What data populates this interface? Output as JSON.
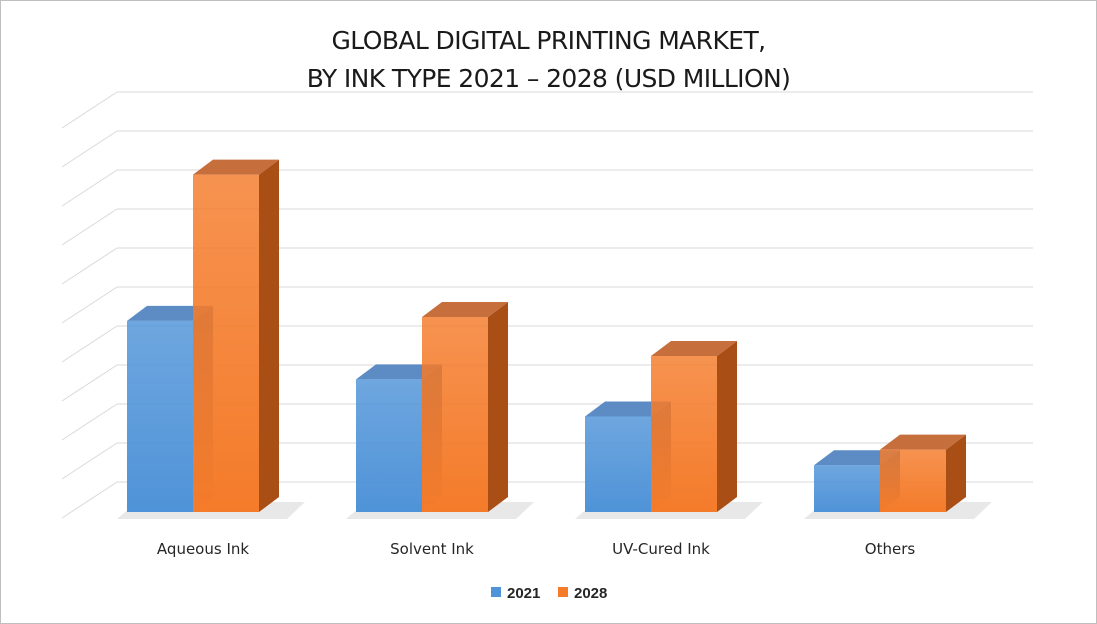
{
  "chart_data": {
    "type": "bar",
    "title_lines": [
      "GLOBAL DIGITAL PRINTING MARKET,",
      "BY INK TYPE 2021 – 2028 (USD MILLION)"
    ],
    "categories": [
      "Aqueous Ink",
      "Solvent Ink",
      "UV-Cured Ink",
      "Others"
    ],
    "series": [
      {
        "name": "2021",
        "values": [
          4.9,
          3.4,
          2.45,
          1.2
        ],
        "color": "#4f93d8",
        "side": "#3e74ad",
        "top": "#5d8cc4"
      },
      {
        "name": "2028",
        "values": [
          8.65,
          5.0,
          4.0,
          1.6
        ],
        "color": "#f47b2a",
        "side": "#a94f16",
        "top": "#c66e3c"
      }
    ],
    "ylim": [
      0,
      10
    ],
    "grid": true,
    "legend": "bottom"
  }
}
